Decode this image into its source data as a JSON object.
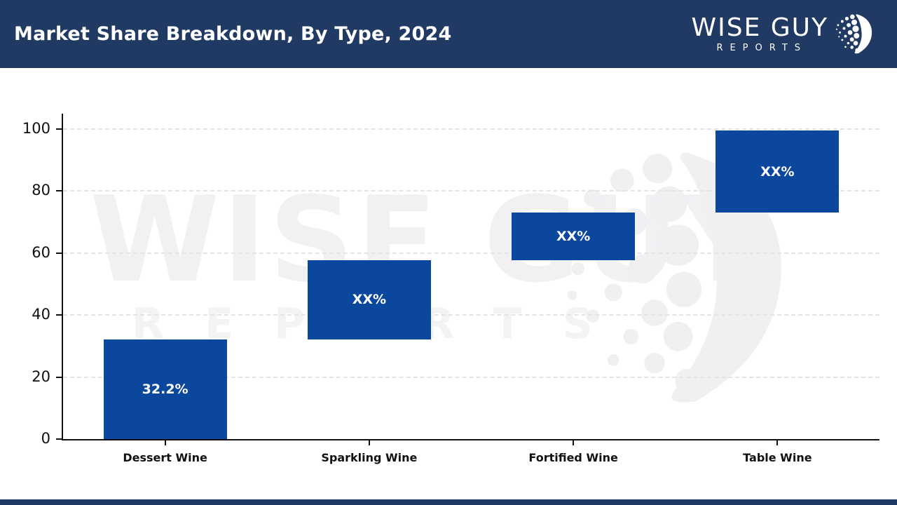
{
  "header": {
    "title": "Market Share Breakdown, By Type, 2024",
    "bg_color": "#213A64",
    "logo": {
      "line1": "WISE GUY",
      "line2": "REPORTS"
    }
  },
  "watermark": {
    "line1": "WISE GUY",
    "line2": "REPORTS"
  },
  "chart_data": {
    "type": "bar",
    "subtype": "waterfall",
    "title": "Market Share Breakdown, By Type, 2024",
    "categories": [
      "Dessert Wine",
      "Sparkling Wine",
      "Fortified Wine",
      "Table Wine"
    ],
    "segments": [
      {
        "category": "Dessert Wine",
        "start": 0,
        "end": 32.2,
        "label": "32.2%"
      },
      {
        "category": "Sparkling Wine",
        "start": 32.2,
        "end": 57.8,
        "label": "XX%"
      },
      {
        "category": "Fortified Wine",
        "start": 57.8,
        "end": 73.0,
        "label": "XX%"
      },
      {
        "category": "Table Wine",
        "start": 73.0,
        "end": 99.5,
        "label": "XX%"
      }
    ],
    "yticks": [
      0,
      20,
      40,
      60,
      80,
      100
    ],
    "ylim": [
      0,
      105
    ],
    "xlabel": "",
    "ylabel": "",
    "grid": "horizontal-dashed",
    "legend": "none",
    "bar_color": "#0B479D",
    "bar_label_color": "#ffffff",
    "axis_color": "#111111",
    "gridline_color": "#e4e4e6"
  },
  "footer": {
    "bg_color": "#213A64"
  }
}
